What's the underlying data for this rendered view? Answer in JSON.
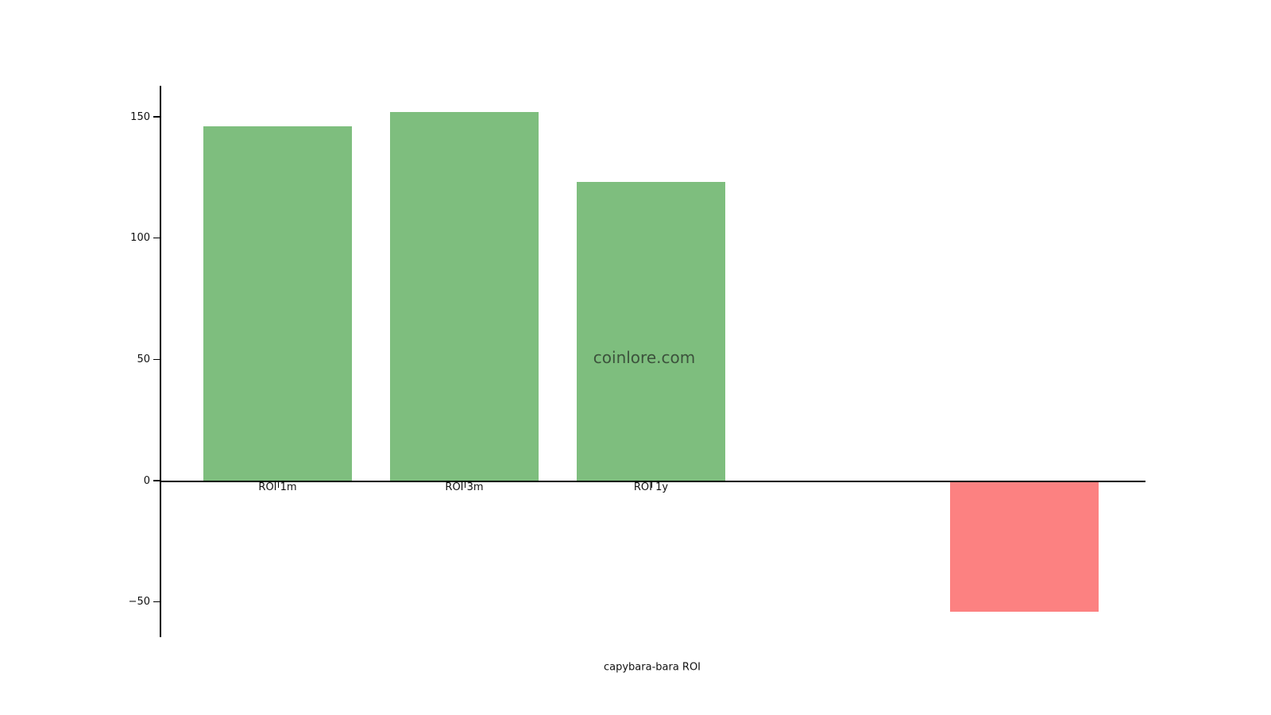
{
  "page": {
    "background_color": "#ffffff"
  },
  "watermark": {
    "text": "coinlore.com"
  },
  "chart_data": {
    "type": "bar",
    "title": "capybara-bara ROI",
    "xlabel": "capybara-bara ROI",
    "ylabel": "",
    "categories": [
      "ROI 1m",
      "ROI 3m",
      "ROI 1y",
      ""
    ],
    "values": [
      146,
      152,
      123,
      -54
    ],
    "bars": [
      {
        "label": "ROI 1m",
        "value": 146,
        "slot": 0,
        "color": "#7ebe7e"
      },
      {
        "label": "ROI 3m",
        "value": 152,
        "slot": 1,
        "color": "#7ebe7e"
      },
      {
        "label": "ROI 1y",
        "value": 123,
        "slot": 2,
        "color": "#7ebe7e"
      },
      {
        "label": "",
        "value": -54,
        "slot": 4,
        "color": "#fc8181"
      }
    ],
    "positive_color": "#7ebe7e",
    "negative_color": "#fc8181",
    "y_ticks": [
      {
        "value": 150,
        "label": "150"
      },
      {
        "value": 100,
        "label": "100"
      },
      {
        "value": 50,
        "label": "50"
      },
      {
        "value": 0,
        "label": "0"
      },
      {
        "value": -50,
        "label": "−50"
      }
    ],
    "ylim": [
      -63.5,
      162.5
    ],
    "grid": false,
    "legend": null,
    "axis_color": "#000000",
    "tick_label_color": "#111111"
  }
}
